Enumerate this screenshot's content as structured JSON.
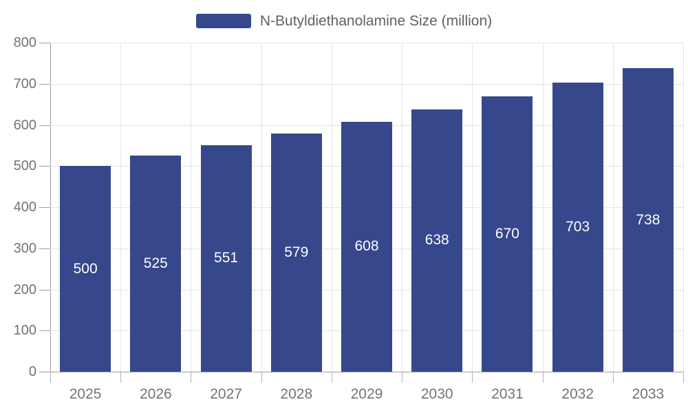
{
  "legend": {
    "items": [
      {
        "label": "N-Butyldiethanolamine Size (million)",
        "color": "#36478b"
      }
    ]
  },
  "chart_data": {
    "type": "bar",
    "title": "N-Butyldiethanolamine Size (million)",
    "categories": [
      "2025",
      "2026",
      "2027",
      "2028",
      "2029",
      "2030",
      "2031",
      "2032",
      "2033"
    ],
    "series": [
      {
        "name": "N-Butyldiethanolamine Size (million)",
        "values": [
          500,
          525,
          551,
          579,
          608,
          638,
          670,
          703,
          738
        ]
      }
    ],
    "value_labels": [
      "500",
      "525",
      "551",
      "579",
      "608",
      "638",
      "670",
      "703",
      "738"
    ],
    "xlabel": "",
    "ylabel": "",
    "ylim": [
      0,
      800
    ],
    "yticks": [
      0,
      100,
      200,
      300,
      400,
      500,
      600,
      700,
      800
    ],
    "grid": "horizontal-and-vertical",
    "legend_position": "top-center",
    "bar_color": "#36478b",
    "value_label_color": "#ffffff",
    "axis_label_color": "#737373",
    "axis_line_color": "#9e9e9e",
    "grid_line_color": "#e2e4ea",
    "background_color": "#ffffff"
  }
}
